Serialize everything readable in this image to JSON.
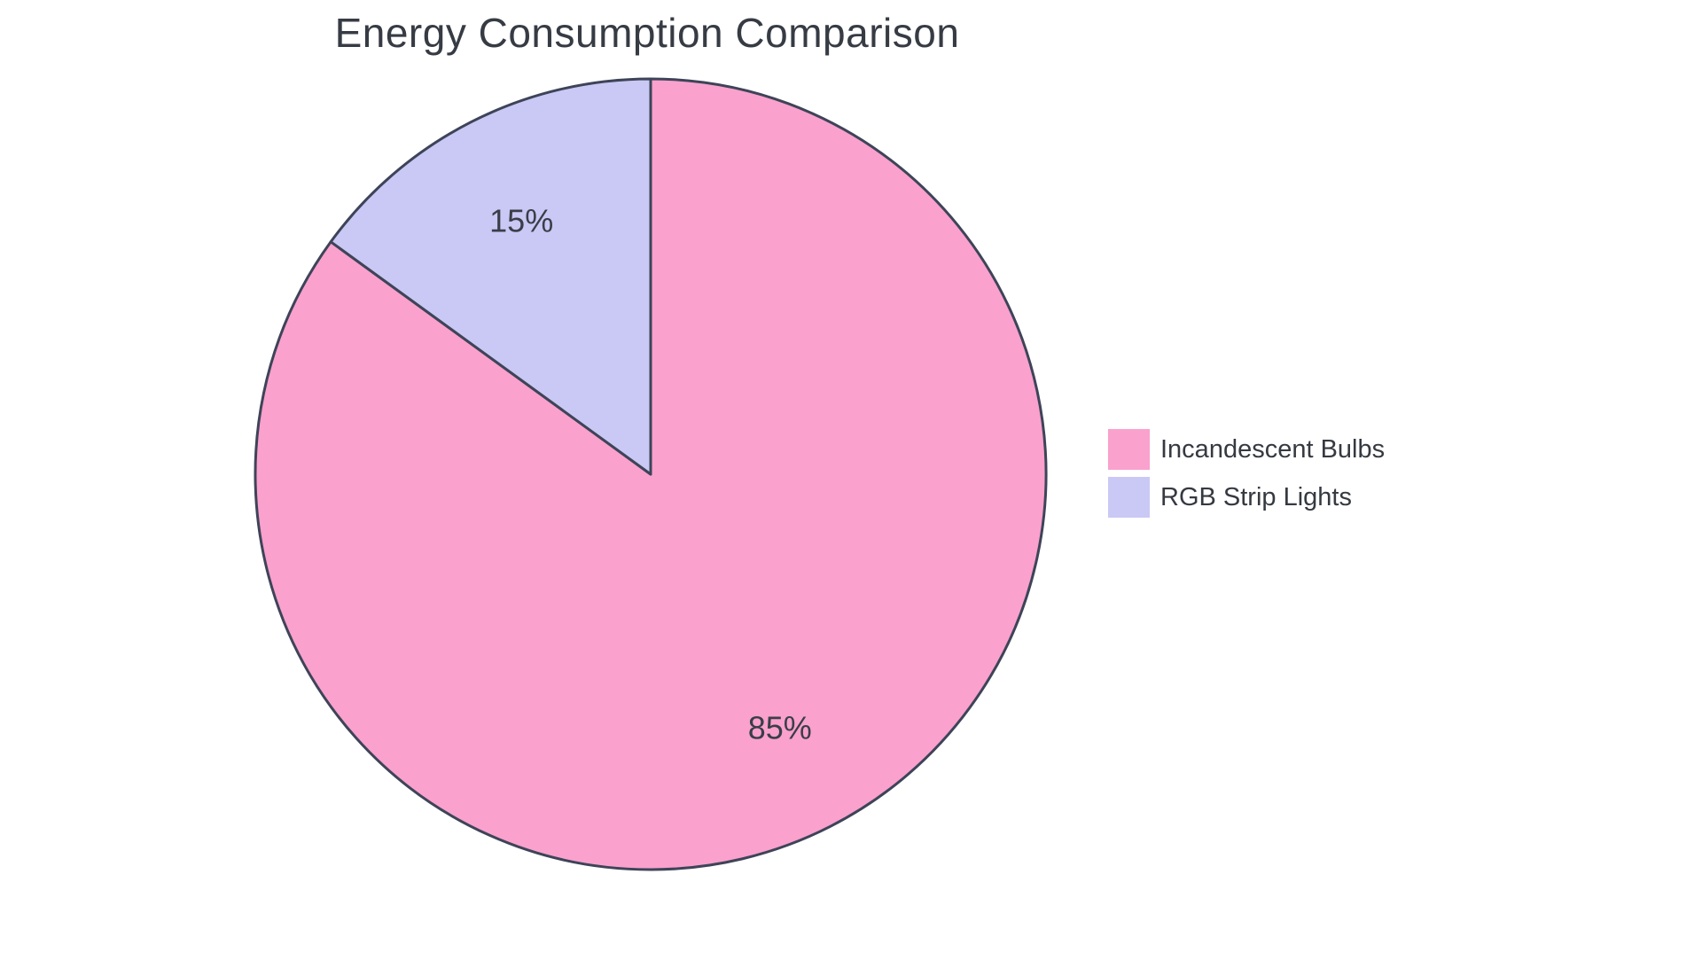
{
  "title": "Energy Consumption Comparison",
  "chart_data": {
    "type": "pie",
    "title": "Energy Consumption Comparison",
    "labels": [
      "Incandescent Bulbs",
      "RGB Strip Lights"
    ],
    "values": [
      85,
      15
    ],
    "unit": "%",
    "slice_labels": [
      "85%",
      "15%"
    ],
    "colors": [
      "#FAA1CD",
      "#CAC8F5"
    ],
    "stroke_color": "#3E4458",
    "label_text_color": "#3A3E48",
    "start_angle_deg": 90,
    "direction": "clockwise",
    "legend_position": "right",
    "grid": false
  },
  "legend": {
    "items": [
      {
        "label": "Incandescent Bulbs",
        "color": "#FAA1CD"
      },
      {
        "label": "RGB Strip Lights",
        "color": "#CAC8F5"
      }
    ]
  }
}
